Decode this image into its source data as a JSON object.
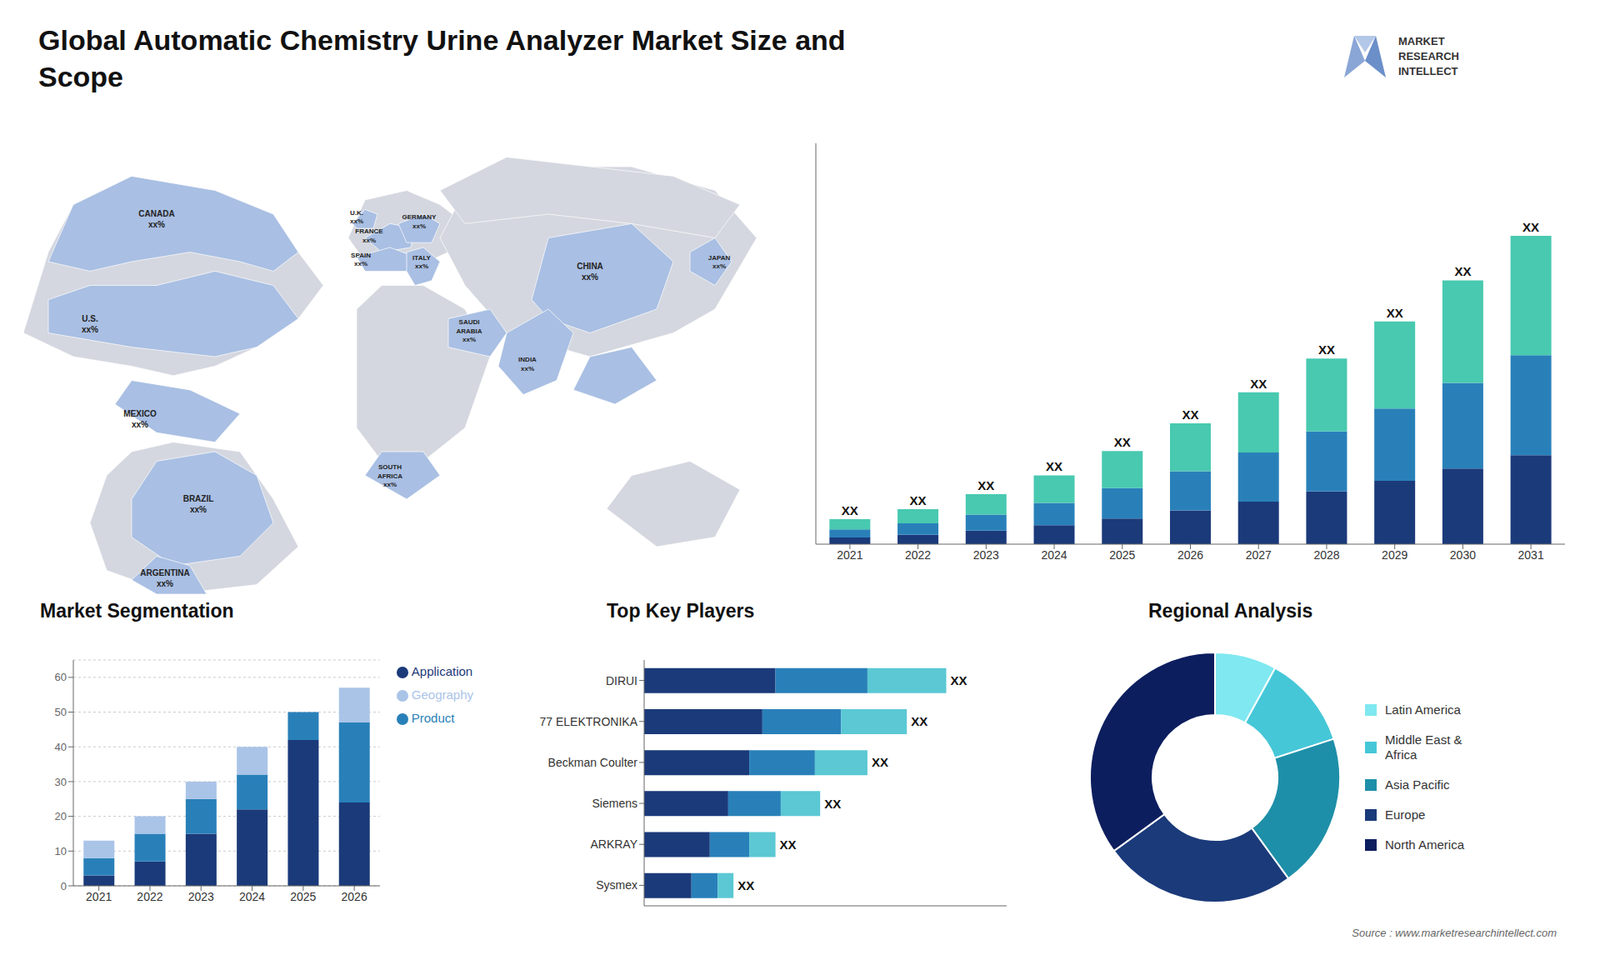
{
  "title": "Global Automatic Chemistry Urine Analyzer Market Size and\nScope",
  "annotations": [
    "CANADA\nxx%",
    "U.S.\nxx%",
    "MEXICO\nxx%",
    "BRAZIL\nxx%",
    "ARGENTINA\nxx%",
    "U.K.\nxx%",
    "FRANCE\nxx%",
    "SPAIN\nxx%",
    "GERMANY\nxx%",
    "ITALY\nxx%",
    "SOUTH\nAFRICA\nxx%",
    "SAUDI\nARABIA\nxx%",
    "INDIA\nxx%",
    "CHINA\nxx%",
    "JAPAN\nxx%",
    "MARKET",
    "RESEARCH",
    "INTELLECT",
    "Source : www.marketresearchintellect.com"
  ],
  "chart_data": [
    {
      "type": "bar",
      "stacked": true,
      "categories": [
        "2021",
        "2022",
        "2023",
        "2024",
        "2025",
        "2026",
        "2027",
        "2028",
        "2029",
        "2030",
        "2031"
      ],
      "series": [
        {
          "color": "#1b3a7a",
          "values": [
            1.0,
            1.4,
            2.0,
            2.8,
            3.8,
            5.0,
            6.3,
            7.8,
            9.4,
            11.2,
            13.2
          ]
        },
        {
          "color": "#2980b9",
          "values": [
            1.2,
            1.7,
            2.4,
            3.3,
            4.5,
            5.8,
            7.3,
            8.9,
            10.7,
            12.7,
            14.8
          ]
        },
        {
          "color": "#48c9b0",
          "values": [
            1.5,
            2.1,
            3.0,
            4.1,
            5.5,
            7.1,
            8.9,
            10.8,
            12.9,
            15.2,
            17.7
          ],
          "value_labels": [
            "XX",
            "XX",
            "XX",
            "XX",
            "XX",
            "XX",
            "XX",
            "XX",
            "XX",
            "XX",
            "XX"
          ]
        }
      ],
      "ylim": [
        0,
        59.41
      ],
      "tick_labels": "x",
      "grid": false
    },
    {
      "type": "bar",
      "title": "Market Segmentation",
      "stacked": true,
      "categories": [
        "2021",
        "2022",
        "2023",
        "2024",
        "2025",
        "2026"
      ],
      "series": [
        {
          "name": "Application",
          "color": "#1b3a7a",
          "values": [
            3,
            7,
            15,
            22,
            42,
            24
          ]
        },
        {
          "name": "Product",
          "color": "#2980b9",
          "values": [
            5,
            8,
            10,
            10,
            8,
            23
          ]
        },
        {
          "name": "Geography",
          "color": "#aac4e8",
          "values": [
            5,
            5,
            5,
            8,
            0,
            10
          ]
        }
      ],
      "ylim": [
        0,
        65
      ],
      "yticks": [
        0,
        10,
        20,
        30,
        40,
        50,
        60
      ],
      "grid": true,
      "legend": "right"
    },
    {
      "type": "bar",
      "title": "Top Key Players",
      "orientation": "horizontal",
      "stacked": true,
      "categories": [
        "DIRUI",
        "77 ELEKTRONIKA",
        "Beckman Coulter",
        "Siemens",
        "ARKRAY",
        "Sysmex"
      ],
      "series": [
        {
          "color": "#1b3a7a",
          "values": [
            5.0,
            4.5,
            4.0,
            3.2,
            2.5,
            1.8
          ]
        },
        {
          "color": "#2980b9",
          "values": [
            3.5,
            3.0,
            2.5,
            2.0,
            1.5,
            1.0
          ]
        },
        {
          "color": "#5bc8d4",
          "values": [
            3.0,
            2.5,
            2.0,
            1.5,
            1.0,
            0.6
          ],
          "value_labels": [
            "XX",
            "XX",
            "XX",
            "XX",
            "XX",
            "XX"
          ]
        }
      ],
      "xlim": [
        0,
        13.8
      ],
      "tick_labels": "y",
      "grid": false
    },
    {
      "type": "pie",
      "title": "Regional Analysis",
      "categories": [
        "Latin America",
        "Middle East &\nAfrica",
        "Asia Pacific",
        "Europe",
        "North America"
      ],
      "values": [
        8,
        12,
        20,
        25,
        35
      ],
      "colors": [
        "#7fe8f0",
        "#45c7d8",
        "#1e8fa8",
        "#1b3a7a",
        "#0d1e5e"
      ],
      "legend": "right"
    }
  ]
}
